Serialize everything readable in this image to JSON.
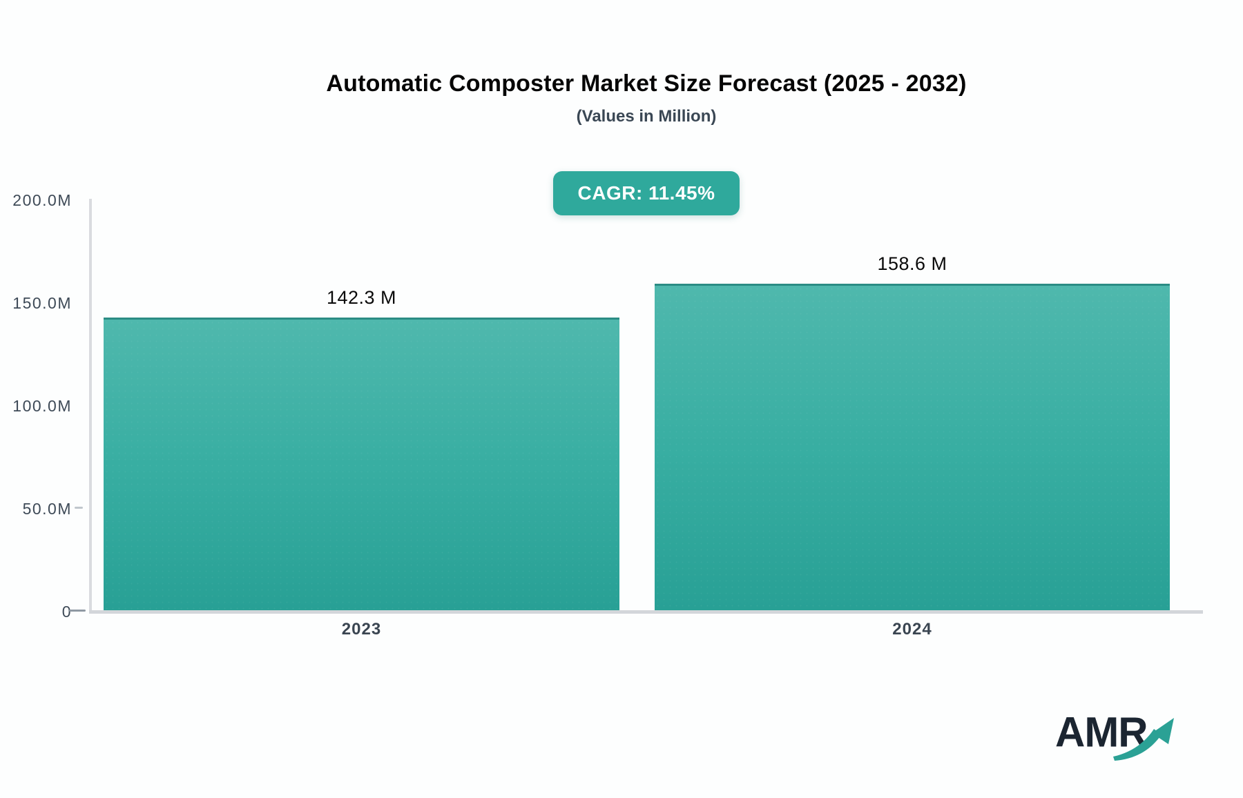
{
  "header": {
    "title": "Automatic Composter Market Size Forecast (2025 - 2032)",
    "subtitle": "(Values in Million)",
    "cagr_label": "CAGR: 11.45%"
  },
  "chart_data": {
    "type": "bar",
    "title": "Automatic Composter Market Size Forecast (2025 - 2032)",
    "subtitle": "(Values in Million)",
    "cagr_percent": 11.45,
    "categories": [
      "2023",
      "2024"
    ],
    "values": [
      142.3,
      158.6
    ],
    "value_labels": [
      "142.3 M",
      "158.6 M"
    ],
    "unit": "M",
    "ylim": [
      0,
      200
    ],
    "yticks": [
      {
        "label": "200.0M",
        "value": 200
      },
      {
        "label": "150.0M",
        "value": 150
      },
      {
        "label": "100.0M",
        "value": 100
      },
      {
        "label": "50.0M",
        "value": 50
      },
      {
        "label": "0",
        "value": 0
      }
    ],
    "grid": false,
    "legend": false,
    "bar_color_top": "#4fb8ad",
    "bar_color_bottom": "#28a095",
    "bar_border_color": "#2b8c84"
  },
  "branding": {
    "logo_text": "AMR"
  },
  "colors": {
    "accent_teal": "#2fa99c",
    "axis_line": "#d6d9dd",
    "tick_text": "#3e4a57",
    "value_text": "#0a0a0a",
    "logo_navy": "#1b2531"
  }
}
